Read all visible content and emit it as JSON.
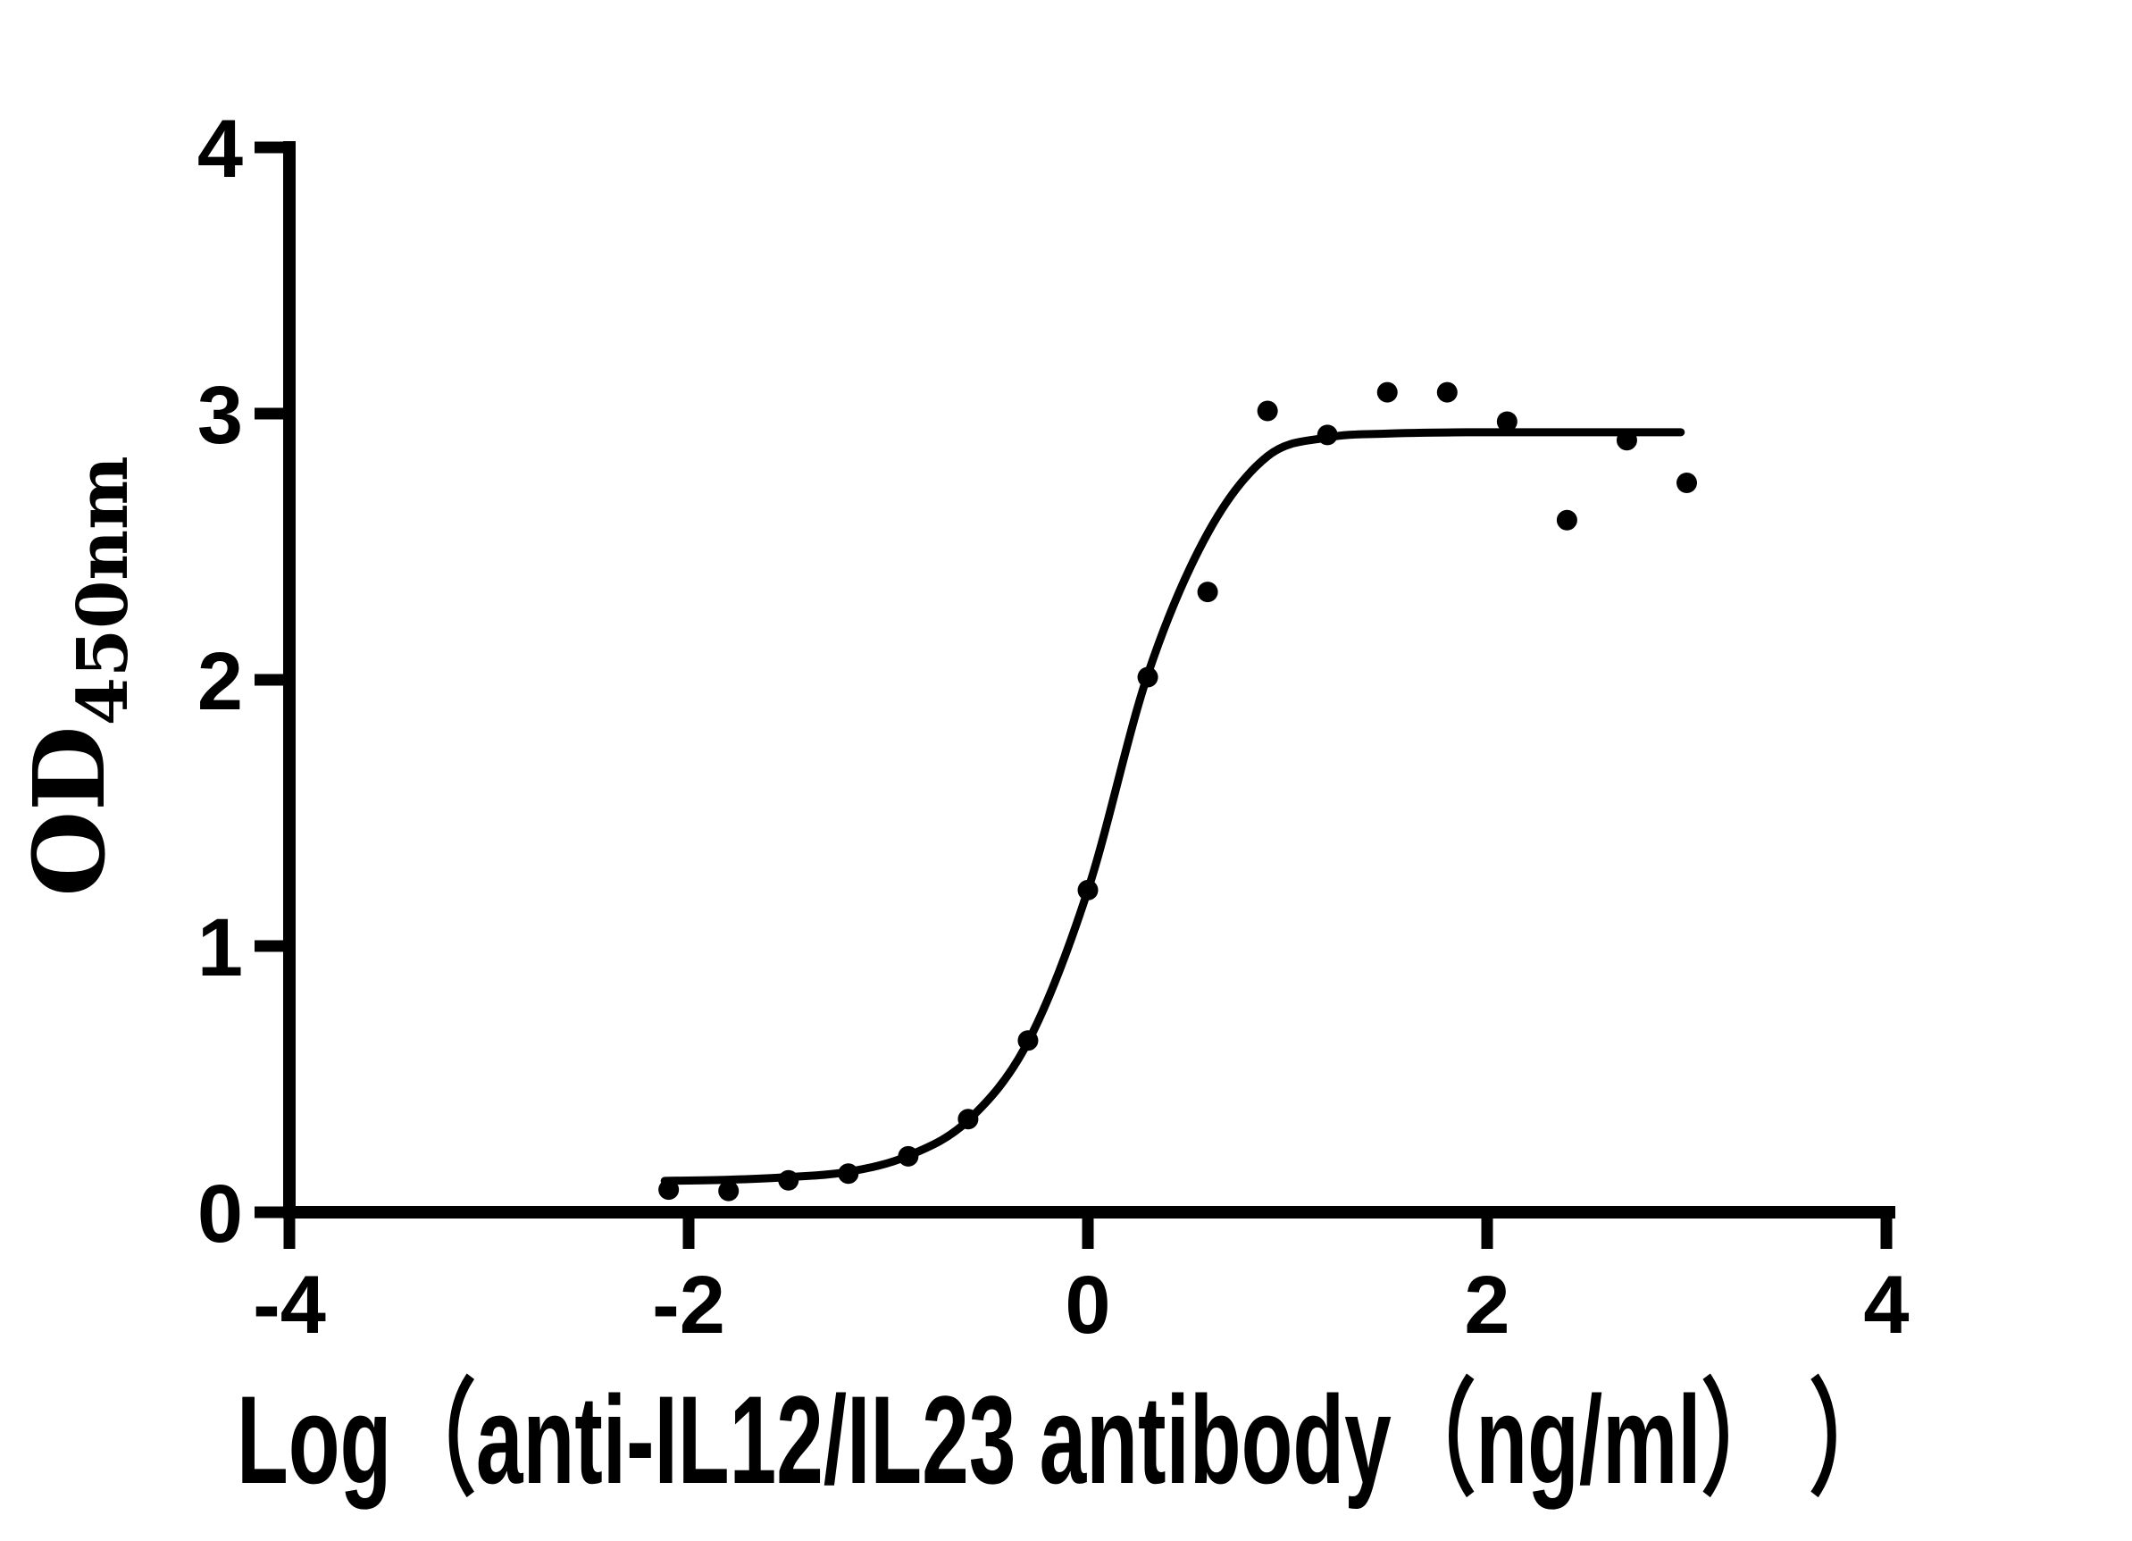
{
  "figure": {
    "background_color": "#ffffff",
    "ink_color": "#000000"
  },
  "chart_data": {
    "type": "scatter",
    "title": "",
    "xlabel": "Log（anti-IL12/IL23 antibody（ng/ml） ）",
    "ylabel": "OD450nm",
    "ylabel_main": "OD",
    "ylabel_sub": "450nm",
    "xlim": [
      -4,
      4
    ],
    "ylim": [
      0,
      4
    ],
    "x_ticks": [
      -4,
      -2,
      0,
      2,
      4
    ],
    "y_ticks": [
      0,
      1,
      2,
      3,
      4
    ],
    "grid": false,
    "legend_position": "none",
    "series": [
      {
        "marker": "filled-circle",
        "color": "#000000",
        "x": [
          -2.1,
          -1.8,
          -1.5,
          -1.2,
          -0.9,
          -0.6,
          -0.3,
          0.0,
          0.3,
          0.6,
          0.9,
          1.2,
          1.5,
          1.8,
          2.1,
          2.4,
          2.7,
          3.0
        ],
        "od": [
          0.085,
          0.08,
          0.12,
          0.145,
          0.21,
          0.35,
          0.645,
          1.21,
          2.01,
          2.33,
          3.01,
          2.92,
          3.08,
          3.08,
          2.97,
          2.6,
          2.9,
          2.74
        ]
      }
    ],
    "fit_curve": {
      "style": "sigmoid-4PL-fit",
      "color": "#000000",
      "x": [
        -2.12,
        -1.8,
        -1.5,
        -1.2,
        -0.9,
        -0.6,
        -0.3,
        0.0,
        0.3,
        0.6,
        0.9,
        1.2,
        1.5,
        1.9,
        2.4,
        2.97
      ],
      "od": [
        0.118,
        0.122,
        0.132,
        0.152,
        0.212,
        0.345,
        0.64,
        1.21,
        2.02,
        2.55,
        2.84,
        2.91,
        2.925,
        2.93,
        2.93,
        2.93
      ]
    }
  }
}
